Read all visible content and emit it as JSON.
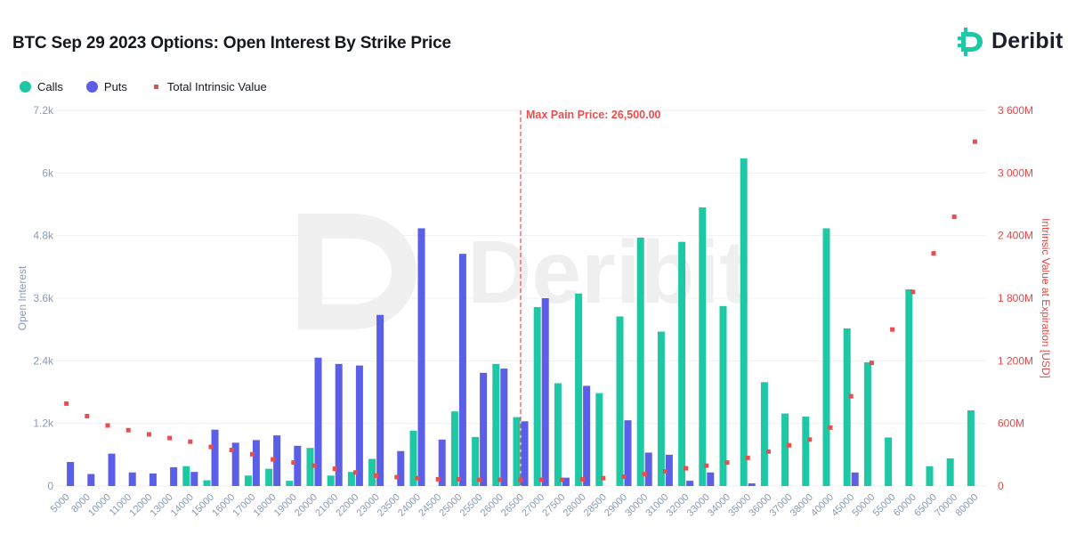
{
  "title": "BTC Sep 29 2023 Options: Open Interest By Strike Price",
  "brand": {
    "name": "Deribit",
    "watermark": "Deribit"
  },
  "colors": {
    "calls": "#1ec8a5",
    "puts": "#5b5ee6",
    "intrinsic": "#e84e4e",
    "grid": "#eef0f3",
    "left_axis": "#8a9bb3",
    "right_axis": "#e04848"
  },
  "legend": [
    {
      "label": "Calls"
    },
    {
      "label": "Puts"
    },
    {
      "label": "Total Intrinsic Value"
    }
  ],
  "chart_data": {
    "type": "bar",
    "title": "BTC Sep 29 2023 Options: Open Interest By Strike Price",
    "xlabel": "",
    "ylabel": "Open Interest",
    "y2label": "Intrinsic Value at Expiration [USD]",
    "ylim": [
      0,
      7200
    ],
    "y2lim": [
      0,
      3600
    ],
    "y_ticks": [
      "0",
      "1.2k",
      "2.4k",
      "3.6k",
      "4.8k",
      "6k",
      "7.2k"
    ],
    "y2_ticks": [
      "0",
      "600M",
      "1 200M",
      "1 800M",
      "2 400M",
      "3 000M",
      "3 600M"
    ],
    "categories": [
      "5000",
      "8000",
      "10000",
      "11000",
      "12000",
      "13000",
      "14000",
      "15000",
      "16000",
      "17000",
      "18000",
      "19000",
      "20000",
      "21000",
      "22000",
      "23000",
      "23500",
      "24000",
      "24500",
      "25000",
      "25500",
      "26000",
      "26500",
      "27000",
      "27500",
      "28000",
      "28500",
      "29000",
      "30000",
      "31000",
      "32000",
      "33000",
      "34000",
      "35000",
      "36000",
      "37000",
      "38000",
      "40000",
      "45000",
      "50000",
      "55000",
      "60000",
      "65000",
      "70000",
      "80000"
    ],
    "series": [
      {
        "name": "Calls",
        "type": "bar",
        "axis": "left",
        "values": [
          0,
          0,
          0,
          0,
          0,
          0,
          380,
          110,
          0,
          200,
          330,
          100,
          730,
          200,
          270,
          520,
          0,
          1060,
          0,
          1430,
          940,
          2340,
          1320,
          3430,
          1970,
          3690,
          1780,
          3250,
          4760,
          2960,
          4680,
          5340,
          3450,
          6280,
          1990,
          1390,
          1330,
          4940,
          3020,
          2370,
          930,
          3770,
          380,
          530,
          1450
        ]
      },
      {
        "name": "Puts",
        "type": "bar",
        "axis": "left",
        "values": [
          460,
          230,
          620,
          260,
          240,
          360,
          270,
          1080,
          830,
          880,
          970,
          770,
          2460,
          2340,
          2310,
          3280,
          670,
          4940,
          890,
          4450,
          2170,
          2250,
          1240,
          3600,
          160,
          1920,
          0,
          1260,
          640,
          600,
          100,
          260,
          0,
          50,
          0,
          0,
          0,
          0,
          260,
          0,
          0,
          0,
          0,
          0,
          0
        ]
      },
      {
        "name": "Total Intrinsic Value",
        "type": "scatter",
        "axis": "right",
        "unit": "M USD",
        "values": [
          790,
          670,
          580,
          535,
          495,
          460,
          425,
          375,
          345,
          305,
          255,
          225,
          195,
          165,
          130,
          100,
          85,
          75,
          65,
          65,
          60,
          60,
          60,
          60,
          60,
          65,
          75,
          90,
          115,
          140,
          170,
          195,
          225,
          270,
          330,
          390,
          445,
          560,
          860,
          1180,
          1500,
          1860,
          2230,
          2580,
          3300
        ]
      }
    ],
    "annotations": [
      {
        "type": "vertical-line",
        "at": "26500",
        "label": "Max Pain Price: 26,500.00"
      }
    ]
  }
}
